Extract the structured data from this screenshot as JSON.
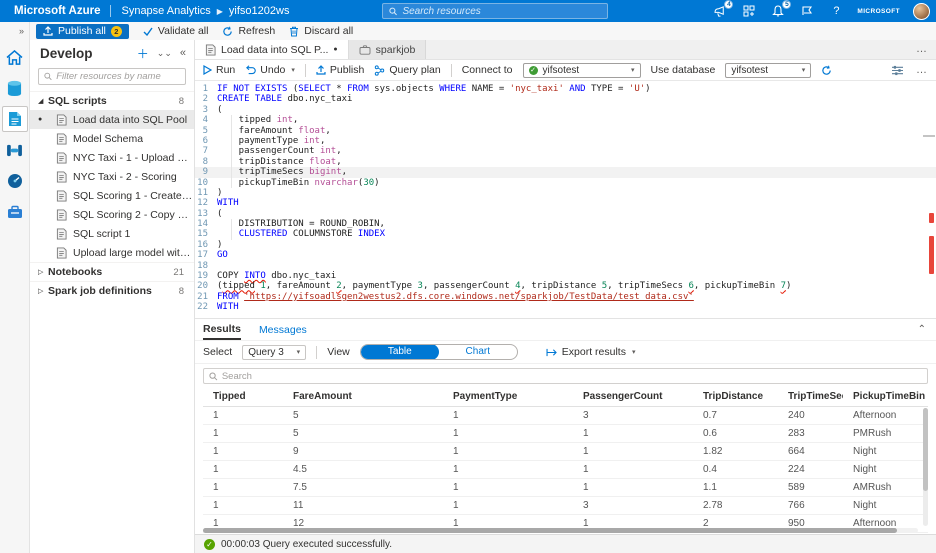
{
  "topbar": {
    "brand": "Microsoft Azure",
    "app": "Synapse Analytics",
    "workspace": "yifso1202ws",
    "search_placeholder": "Search resources",
    "notifications_badge": "4",
    "alerts_badge": "5",
    "help_label": "?",
    "account_label": "MICROSOFT"
  },
  "commandbar": {
    "publish_all": "Publish all",
    "publish_count": "2",
    "validate_all": "Validate all",
    "refresh": "Refresh",
    "discard_all": "Discard all"
  },
  "tabs": {
    "tab1": "Load data into SQL P...",
    "tab2": "sparkjob"
  },
  "querybar": {
    "run": "Run",
    "undo": "Undo",
    "publish": "Publish",
    "query_plan": "Query plan",
    "connect_to_label": "Connect to",
    "connect_value": "yifsotest",
    "use_database_label": "Use database",
    "database_value": "yifsotest"
  },
  "develop": {
    "title": "Develop",
    "filter_placeholder": "Filter resources by name",
    "sections": [
      {
        "label": "SQL scripts",
        "count": "8",
        "expanded": true,
        "selected_index": 0,
        "items": [
          "Load data into SQL Pool",
          "Model Schema",
          "NYC Taxi - 1 - Upload model",
          "NYC Taxi - 2 - Scoring",
          "SQL Scoring 1 - Create model table",
          "SQL Scoring 2 - Copy model into mo...",
          "SQL script 1",
          "Upload large model with COPY INTO"
        ]
      },
      {
        "label": "Notebooks",
        "count": "21",
        "expanded": false
      },
      {
        "label": "Spark job definitions",
        "count": "8",
        "expanded": false
      }
    ]
  },
  "editor": {
    "lines": [
      {
        "n": 1,
        "segs": [
          [
            "k",
            "IF NOT EXISTS"
          ],
          [
            "p",
            " ("
          ],
          [
            "k",
            "SELECT"
          ],
          [
            "p",
            " * "
          ],
          [
            "k",
            "FROM"
          ],
          [
            "p",
            " sys.objects "
          ],
          [
            "k",
            "WHERE"
          ],
          [
            "p",
            " NAME = "
          ],
          [
            "s",
            "'nyc_taxi'"
          ],
          [
            "p",
            " "
          ],
          [
            "k",
            "AND"
          ],
          [
            "p",
            " TYPE = "
          ],
          [
            "s",
            "'U'"
          ],
          [
            "p",
            ")"
          ]
        ]
      },
      {
        "n": 2,
        "segs": [
          [
            "k",
            "CREATE TABLE"
          ],
          [
            "p",
            " dbo.nyc_taxi"
          ]
        ]
      },
      {
        "n": 3,
        "segs": [
          [
            "p",
            "("
          ]
        ]
      },
      {
        "n": 4,
        "segs": [
          [
            "p",
            "    tipped "
          ],
          [
            "t",
            "int"
          ],
          [
            "p",
            ","
          ]
        ]
      },
      {
        "n": 5,
        "segs": [
          [
            "p",
            "    fareAmount "
          ],
          [
            "t",
            "float"
          ],
          [
            "p",
            ","
          ]
        ]
      },
      {
        "n": 6,
        "segs": [
          [
            "p",
            "    paymentType "
          ],
          [
            "t",
            "int"
          ],
          [
            "p",
            ","
          ]
        ]
      },
      {
        "n": 7,
        "segs": [
          [
            "p",
            "    passengerCount "
          ],
          [
            "t",
            "int"
          ],
          [
            "p",
            ","
          ]
        ]
      },
      {
        "n": 8,
        "segs": [
          [
            "p",
            "    tripDistance "
          ],
          [
            "t",
            "float"
          ],
          [
            "p",
            ","
          ]
        ]
      },
      {
        "n": 9,
        "cur": true,
        "segs": [
          [
            "p",
            "    tripTimeSecs "
          ],
          [
            "t",
            "bigint"
          ],
          [
            "p",
            ","
          ]
        ]
      },
      {
        "n": 10,
        "segs": [
          [
            "p",
            "    pickupTimeBin "
          ],
          [
            "t",
            "nvarchar"
          ],
          [
            "p",
            "("
          ],
          [
            "n",
            "30"
          ],
          [
            "p",
            ")"
          ]
        ]
      },
      {
        "n": 11,
        "segs": [
          [
            "p",
            ")"
          ]
        ]
      },
      {
        "n": 12,
        "segs": [
          [
            "k",
            "WITH"
          ]
        ]
      },
      {
        "n": 13,
        "segs": [
          [
            "p",
            "("
          ]
        ]
      },
      {
        "n": 14,
        "segs": [
          [
            "p",
            "    DISTRIBUTION = ROUND_ROBIN,"
          ]
        ]
      },
      {
        "n": 15,
        "segs": [
          [
            "p",
            "    "
          ],
          [
            "k",
            "CLUSTERED"
          ],
          [
            "p",
            " COLUMNSTORE "
          ],
          [
            "k",
            "INDEX"
          ]
        ]
      },
      {
        "n": 16,
        "segs": [
          [
            "p",
            ")"
          ]
        ]
      },
      {
        "n": 17,
        "segs": [
          [
            "k",
            "GO"
          ]
        ]
      },
      {
        "n": 18,
        "segs": []
      },
      {
        "n": 19,
        "segs": [
          [
            "p",
            "COPY "
          ],
          [
            "k",
            "INTO",
            "err"
          ],
          [
            "p",
            " dbo.nyc_taxi"
          ]
        ]
      },
      {
        "n": 20,
        "segs": [
          [
            "p",
            "("
          ],
          [
            "p",
            "tipped",
            "err"
          ],
          [
            "p",
            " "
          ],
          [
            "n",
            "1"
          ],
          [
            "p",
            ", fareAmount "
          ],
          [
            "n",
            "2",
            "err"
          ],
          [
            "p",
            ", paymentType "
          ],
          [
            "n",
            "3"
          ],
          [
            "p",
            ", passengerCount "
          ],
          [
            "n",
            "4",
            "err"
          ],
          [
            "p",
            ", tripDistance "
          ],
          [
            "n",
            "5"
          ],
          [
            "p",
            ", tripTimeSecs "
          ],
          [
            "n",
            "6",
            "err"
          ],
          [
            "p",
            ", pickupTimeBin "
          ],
          [
            "n",
            "7",
            "err"
          ],
          [
            "p",
            ")"
          ]
        ]
      },
      {
        "n": 21,
        "segs": [
          [
            "k",
            "FROM"
          ],
          [
            "p",
            " "
          ],
          [
            "s",
            "'https://yifsoadlsgen2westus2.dfs.core.windows.net/sparkjob/TestData/test_data.csv'",
            "lnk"
          ]
        ]
      },
      {
        "n": 22,
        "segs": [
          [
            "k",
            "WITH"
          ]
        ]
      }
    ]
  },
  "results": {
    "tab_results": "Results",
    "tab_messages": "Messages",
    "select_label": "Select",
    "query_value": "Query 3",
    "view_label": "View",
    "view_table": "Table",
    "view_chart": "Chart",
    "export_label": "Export results",
    "search_placeholder": "Search",
    "columns": [
      "Tipped",
      "FareAmount",
      "PaymentType",
      "PassengerCount",
      "TripDistance",
      "TripTimeSecs",
      "PickupTimeBin"
    ],
    "rows": [
      [
        "1",
        "5",
        "1",
        "3",
        "0.7",
        "240",
        "Afternoon"
      ],
      [
        "1",
        "5",
        "1",
        "1",
        "0.6",
        "283",
        "PMRush"
      ],
      [
        "1",
        "9",
        "1",
        "1",
        "1.82",
        "664",
        "Night"
      ],
      [
        "1",
        "4.5",
        "1",
        "1",
        "0.4",
        "224",
        "Night"
      ],
      [
        "1",
        "7.5",
        "1",
        "1",
        "1.1",
        "589",
        "AMRush"
      ],
      [
        "1",
        "11",
        "1",
        "3",
        "2.78",
        "766",
        "Night"
      ],
      [
        "1",
        "12",
        "1",
        "1",
        "2",
        "950",
        "Afternoon"
      ]
    ]
  },
  "statusbar": {
    "text": "00:00:03 Query executed successfully."
  },
  "colors": {
    "accent": "#0078d4",
    "error": "#e51400",
    "success": "#57a300",
    "badge_yellow": "#f8c10f"
  }
}
